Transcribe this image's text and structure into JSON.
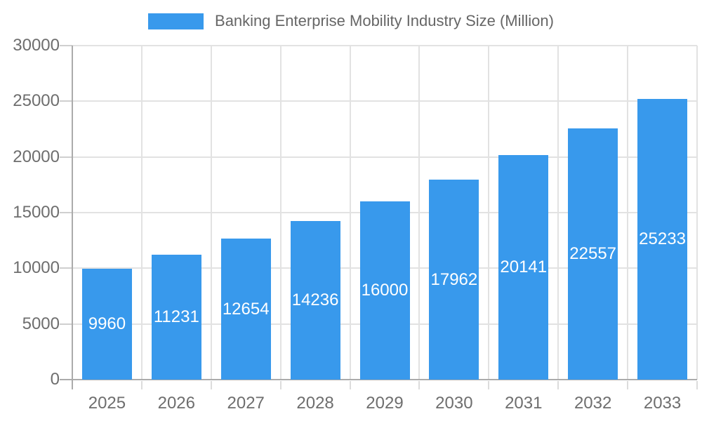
{
  "chart_data": {
    "type": "bar",
    "title": "Banking Enterprise Mobility Industry Size (Million)",
    "categories": [
      "2025",
      "2026",
      "2027",
      "2028",
      "2029",
      "2030",
      "2031",
      "2032",
      "2033"
    ],
    "values": [
      9960,
      11231,
      12654,
      14236,
      16000,
      17962,
      20141,
      22557,
      25233
    ],
    "xlabel": "",
    "ylabel": "",
    "ylim": [
      0,
      30000
    ],
    "yticks": [
      0,
      5000,
      10000,
      15000,
      20000,
      25000,
      30000
    ],
    "grid": true,
    "legend_position": "top-center",
    "value_labels_position": "inside-center"
  },
  "legend": {
    "series_label": "Banking Enterprise Mobility Industry Size (Million)"
  },
  "colors": {
    "bar": "#3899EC",
    "axis_line": "#ababab",
    "grid_line": "#e2e2e2",
    "tick_line": "#cfcfcf",
    "x_tick_line": "#dcdcdc",
    "axis_text": "#6e6e6e",
    "legend_text": "#666666",
    "bar_label_text": "#ffffff",
    "background": "#ffffff"
  }
}
